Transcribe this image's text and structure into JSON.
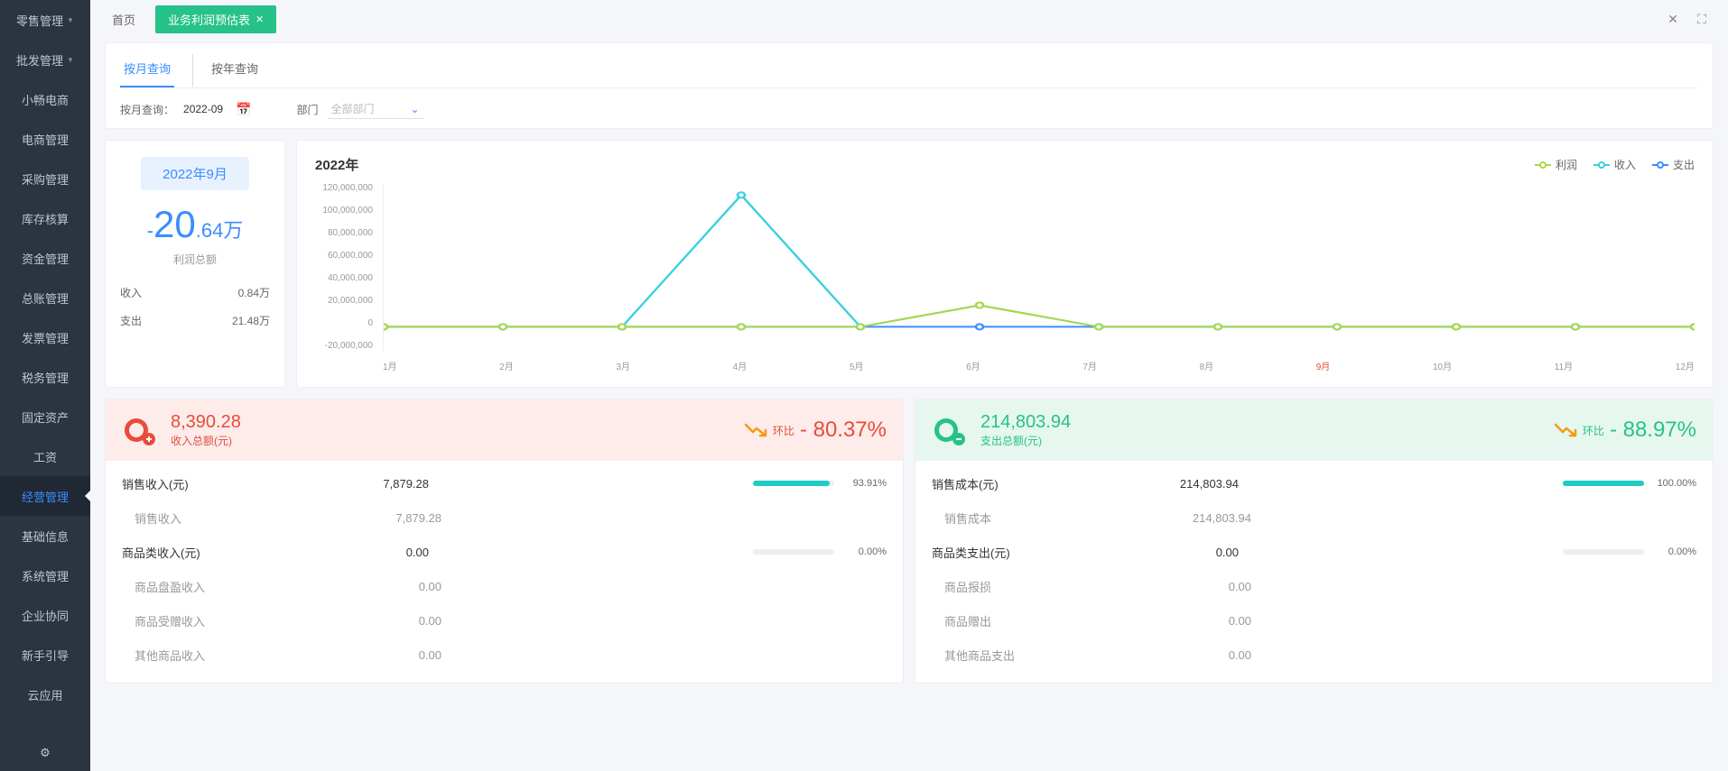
{
  "sidebar": {
    "items": [
      {
        "label": "零售管理",
        "sub": true
      },
      {
        "label": "批发管理",
        "sub": true
      },
      {
        "label": "小畅电商"
      },
      {
        "label": "电商管理"
      },
      {
        "label": "采购管理"
      },
      {
        "label": "库存核算"
      },
      {
        "label": "资金管理"
      },
      {
        "label": "总账管理"
      },
      {
        "label": "发票管理"
      },
      {
        "label": "税务管理"
      },
      {
        "label": "固定资产"
      },
      {
        "label": "工资"
      },
      {
        "label": "经营管理",
        "active": true
      },
      {
        "label": "基础信息"
      },
      {
        "label": "系统管理"
      },
      {
        "label": "企业协同"
      },
      {
        "label": "新手引导"
      },
      {
        "label": "云应用"
      }
    ]
  },
  "tabs": {
    "home": "首页",
    "active": "业务利润预估表"
  },
  "query": {
    "tab_month": "按月查询",
    "tab_year": "按年查询",
    "month_label": "按月查询：",
    "month_value": "2022-09",
    "dept_label": "部门",
    "dept_placeholder": "全部部门"
  },
  "summary": {
    "month_badge": "2022年9月",
    "profit_prefix": "-",
    "profit_big": "20",
    "profit_suffix": ".64万",
    "profit_label": "利润总额",
    "income_label": "收入",
    "income_value": "0.84万",
    "expense_label": "支出",
    "expense_value": "21.48万"
  },
  "chart": {
    "title": "2022年",
    "legend": [
      {
        "label": "利润",
        "color": "#a8d84a"
      },
      {
        "label": "收入",
        "color": "#38d0e0"
      },
      {
        "label": "支出",
        "color": "#3c8cff"
      }
    ],
    "y_ticks": [
      "120,000,000",
      "100,000,000",
      "80,000,000",
      "60,000,000",
      "40,000,000",
      "20,000,000",
      "0",
      "-20,000,000"
    ],
    "x_labels": [
      "1月",
      "2月",
      "3月",
      "4月",
      "5月",
      "6月",
      "7月",
      "8月",
      "9月",
      "10月",
      "11月",
      "12月"
    ],
    "x_highlight_index": 8,
    "ylim": [
      -20000000,
      120000000
    ],
    "series": {
      "profit": [
        0,
        0,
        0,
        0,
        0,
        18000000,
        0,
        0,
        0,
        0,
        0,
        0
      ],
      "income": [
        0,
        0,
        0,
        110000000,
        0,
        18000000,
        0,
        0,
        0,
        0,
        0,
        0
      ],
      "expense": [
        0,
        0,
        0,
        0,
        0,
        0,
        0,
        0,
        0,
        0,
        0,
        0
      ]
    }
  },
  "income": {
    "amount": "8,390.28",
    "sub": "收入总额(元)",
    "trend_label": "环比",
    "trend_value": "- 80.37%",
    "color": "#e74c3c",
    "rows": [
      {
        "label": "销售收入(元)",
        "value": "7,879.28",
        "pct": "93.91%",
        "pct_num": 93.91,
        "bar_color": "#1ecdc5"
      },
      {
        "label": "销售收入",
        "value": "7,879.28",
        "sub": true
      },
      {
        "label": "商品类收入(元)",
        "value": "0.00",
        "pct": "0.00%",
        "pct_num": 0,
        "bar_color": "#1ecdc5"
      },
      {
        "label": "商品盘盈收入",
        "value": "0.00",
        "sub": true
      },
      {
        "label": "商品受赠收入",
        "value": "0.00",
        "sub": true
      },
      {
        "label": "其他商品收入",
        "value": "0.00",
        "sub": true
      }
    ]
  },
  "expense": {
    "amount": "214,803.94",
    "sub": "支出总额(元)",
    "trend_label": "环比",
    "trend_value": "- 88.97%",
    "color": "#26c28a",
    "rows": [
      {
        "label": "销售成本(元)",
        "value": "214,803.94",
        "pct": "100.00%",
        "pct_num": 100,
        "bar_color": "#1ecdc5"
      },
      {
        "label": "销售成本",
        "value": "214,803.94",
        "sub": true
      },
      {
        "label": "商品类支出(元)",
        "value": "0.00",
        "pct": "0.00%",
        "pct_num": 0,
        "bar_color": "#1ecdc5"
      },
      {
        "label": "商品报损",
        "value": "0.00",
        "sub": true
      },
      {
        "label": "商品赠出",
        "value": "0.00",
        "sub": true
      },
      {
        "label": "其他商品支出",
        "value": "0.00",
        "sub": true
      }
    ]
  }
}
